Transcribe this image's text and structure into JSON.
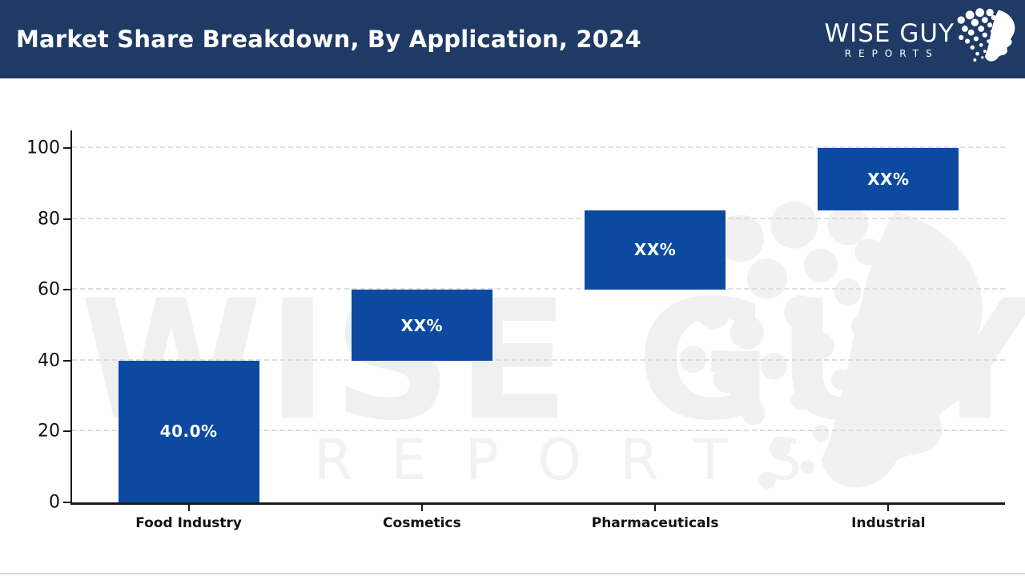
{
  "header": {
    "title": "Market Share Breakdown, By Application, 2024",
    "logo": {
      "line1": "WISE GUY",
      "line2": "REPORTS"
    }
  },
  "watermark": {
    "line1": "WISE GUY",
    "line2": "REPORTS"
  },
  "chart_data": {
    "type": "bar",
    "subtype": "waterfall",
    "title": "Market Share Breakdown, By Application, 2024",
    "categories": [
      "Food Industry",
      "Cosmetics",
      "Pharmaceuticals",
      "Industrial"
    ],
    "bars": [
      {
        "category": "Food Industry",
        "start": 0,
        "end": 40,
        "label": "40.0%"
      },
      {
        "category": "Cosmetics",
        "start": 40,
        "end": 60,
        "label": "XX%"
      },
      {
        "category": "Pharmaceuticals",
        "start": 60,
        "end": 82.5,
        "label": "XX%"
      },
      {
        "category": "Industrial",
        "start": 82.5,
        "end": 100,
        "label": "XX%"
      }
    ],
    "yticks": [
      0,
      20,
      40,
      60,
      80,
      100
    ],
    "ylim": [
      0,
      105
    ],
    "xlabel": "",
    "ylabel": "",
    "grid": "horizontal-dashed",
    "legend": "none",
    "colors": {
      "bar": "#0B4AA0",
      "header_background": "#203A66",
      "grid": "#DCDCDC",
      "axis": "#1A1A1A",
      "bar_label_text": "#FFFFFF",
      "title_text": "#FFFFFF",
      "watermark": "#F0F0F0"
    }
  }
}
